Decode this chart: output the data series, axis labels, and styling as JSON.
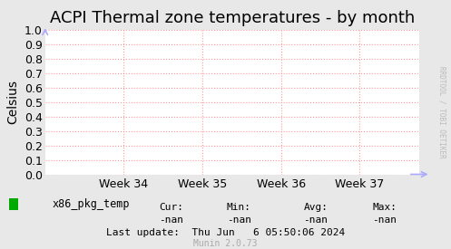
{
  "title": "ACPI Thermal zone temperatures - by month",
  "ylabel": "Celsius",
  "background_color": "#e8e8e8",
  "plot_background_color": "#ffffff",
  "grid_color": "#ff9999",
  "ylim": [
    0.0,
    1.0
  ],
  "yticks": [
    0.0,
    0.1,
    0.2,
    0.3,
    0.4,
    0.5,
    0.6,
    0.7,
    0.8,
    0.9,
    1.0
  ],
  "xtick_labels": [
    "Week 34",
    "Week 35",
    "Week 36",
    "Week 37"
  ],
  "xtick_positions": [
    0.21,
    0.42,
    0.63,
    0.84
  ],
  "title_fontsize": 13,
  "axis_fontsize": 10,
  "tick_fontsize": 9,
  "legend_label": "x86_pkg_temp",
  "legend_color": "#00aa00",
  "cur_label": "Cur:",
  "cur_val": "-nan",
  "min_label": "Min:",
  "min_val": "-nan",
  "avg_label": "Avg:",
  "avg_val": "-nan",
  "max_label": "Max:",
  "max_val": "-nan",
  "last_update": "Last update:  Thu Jun   6 05:50:06 2024",
  "watermark": "Munin 2.0.73",
  "side_label": "RRDTOOL / TOBI OETIKER",
  "arrow_color": "#aaaaff"
}
